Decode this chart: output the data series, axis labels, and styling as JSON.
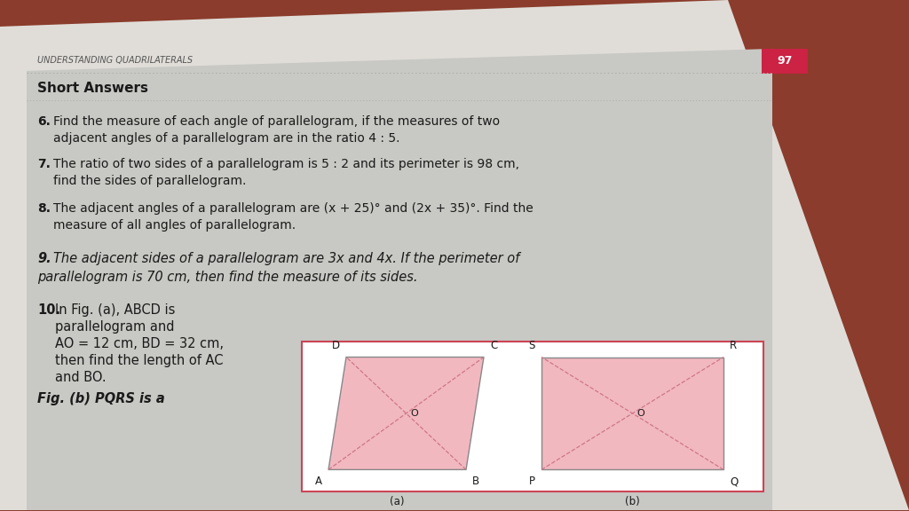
{
  "page_title": "UNDERSTANDING QUADRILATERALS",
  "section_title": "Short Answers",
  "q6_num": "6.",
  "q6_line1": "Find the measure of each angle of parallelogram, if the measures of two",
  "q6_line2": "adjacent angles of a parallelogram are in the ratio 4 : 5.",
  "q7_num": "7.",
  "q7_line1": "The ratio of two sides of a parallelogram is 5 : 2 and its perimeter is 98 cm,",
  "q7_line2": "find the sides of parallelogram.",
  "q8_num": "8.",
  "q8_line1": "The adjacent angles of a parallelogram are (x + 25)° and (2x + 35)°. Find the",
  "q8_line2": "measure of all angles of parallelogram.",
  "q9_num": "9.",
  "q9_line1": "The adjacent sides of a parallelogram are 3x and 4x. If the perimeter of",
  "q9_line2": "parallelogram is 70 cm, then find the measure of its sides.",
  "q10_num": "10.",
  "q10_line1": "In Fig. (a), ABCD is",
  "q10_line2": "parallelogram and",
  "q10_line3": "AO = 12 cm, BD = 32 cm,",
  "q10_line4": "then find the length of AC",
  "q10_line5": "and BO.",
  "bottom_text": "Fig. (b) PQRS is a",
  "page_number": "97",
  "bg_color": "#8B3C2C",
  "page_light": "#e0ddd8",
  "content_bg": "#c8c8c4",
  "white_box": "#f5f5f0",
  "para_fill": "#f2b8c0",
  "rect_fill": "#f2b8c0",
  "edge_color": "#888888",
  "dash_color": "#cc7788",
  "text_dark": "#1a1a1a",
  "page_num_bg": "#cc2244",
  "title_color": "#555555"
}
